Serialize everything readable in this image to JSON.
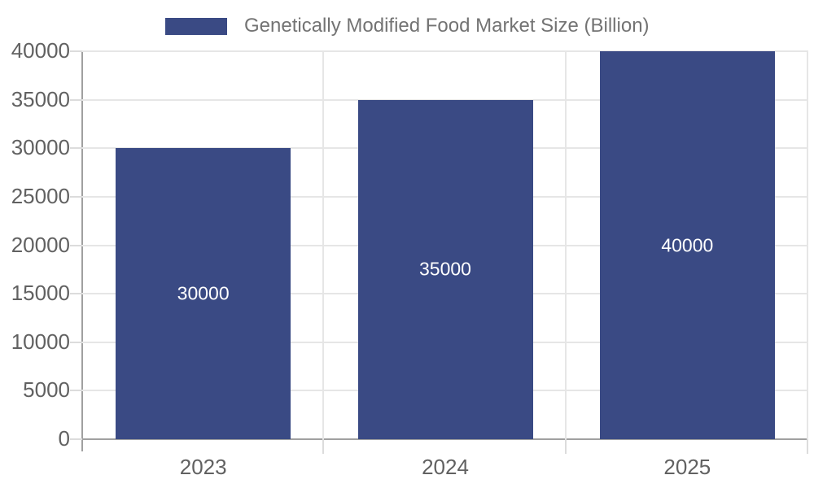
{
  "legend": {
    "label": "Genetically Modified Food Market Size (Billion)"
  },
  "chart_data": {
    "type": "bar",
    "title": "",
    "xlabel": "",
    "ylabel": "",
    "categories": [
      "2023",
      "2024",
      "2025"
    ],
    "values": [
      30000,
      35000,
      40000
    ],
    "bar_labels": [
      "30000",
      "35000",
      "40000"
    ],
    "series_name": "Genetically Modified Food Market Size (Billion)",
    "y_ticks": [
      0,
      5000,
      10000,
      15000,
      20000,
      25000,
      30000,
      35000,
      40000
    ],
    "y_tick_labels": [
      "0",
      "5000",
      "10000",
      "15000",
      "20000",
      "25000",
      "30000",
      "35000",
      "40000"
    ],
    "ylim": [
      0,
      40000
    ],
    "grid": true,
    "legend_position": "top",
    "colors": {
      "bar": "#3a4a84",
      "grid": "#e6e6e6",
      "axis": "#a0a0a0",
      "tick_mark": "#dcdcdc",
      "tick_label": "#616161",
      "legend_text": "#737373",
      "bar_label": "#ffffff",
      "background": "#ffffff"
    }
  }
}
